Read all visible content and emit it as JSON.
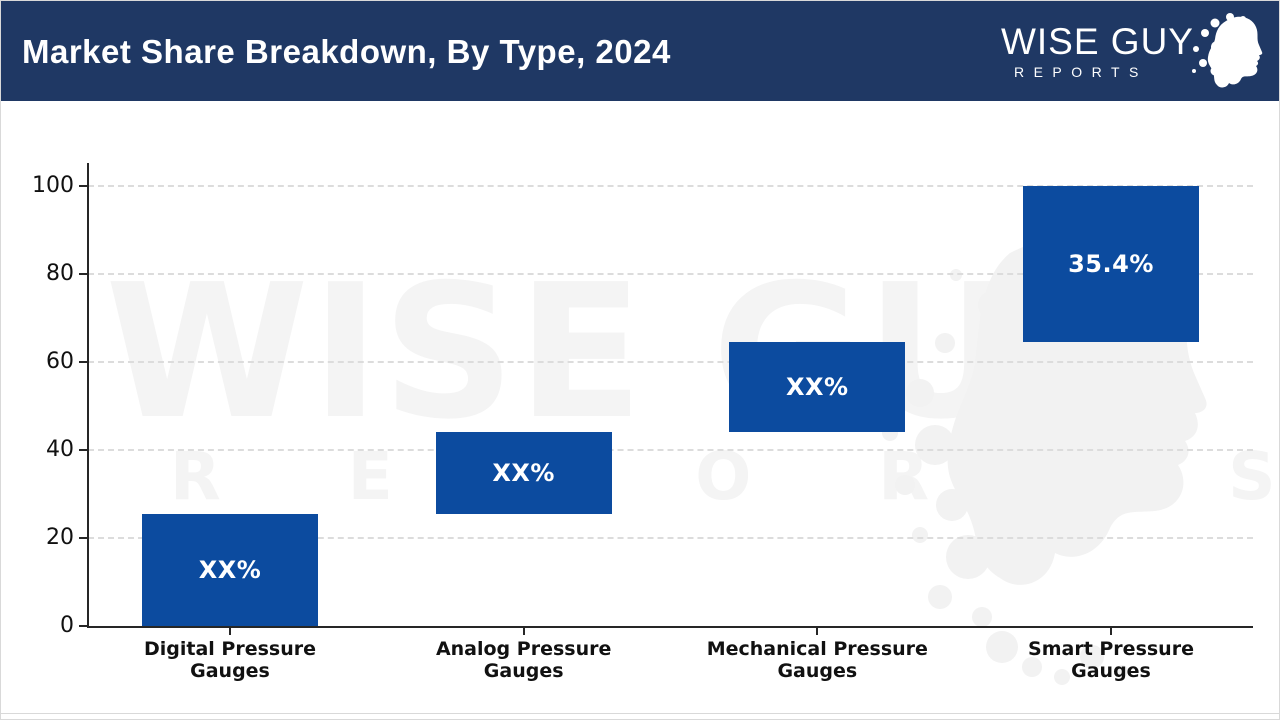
{
  "header": {
    "title": "Market Share Breakdown, By Type, 2024",
    "logo_line1": "WISE GUY",
    "logo_line2": "REPORTS"
  },
  "watermark": {
    "line1": "WISE GUY",
    "line2": "R E P O R T S"
  },
  "colors": {
    "header_bg": "#1F3864",
    "bar": "#0C4B9F",
    "gridline": "#DCDCDC",
    "axis": "#262626",
    "bar_label_text": "#FFFFFF",
    "watermark_gray": "#F4F4F4"
  },
  "chart_data": {
    "type": "bar",
    "subtype": "floating-waterfall",
    "title": "Market Share Breakdown, By Type, 2024",
    "categories": [
      "Digital Pressure\nGauges",
      "Analog Pressure\nGauges",
      "Mechanical Pressure\nGauges",
      "Smart Pressure\nGauges"
    ],
    "bars": [
      {
        "label": "XX%",
        "start": 0,
        "end": 25.5
      },
      {
        "label": "XX%",
        "start": 25.5,
        "end": 44.2
      },
      {
        "label": "XX%",
        "start": 44.2,
        "end": 64.6
      },
      {
        "label": "35.4%",
        "start": 64.6,
        "end": 100
      }
    ],
    "xlabel": "",
    "ylabel": "",
    "ylim": [
      0,
      100
    ],
    "yticks": [
      0,
      20,
      40,
      60,
      80,
      100
    ],
    "grid": "dashed-horizontal",
    "legend": "none"
  }
}
